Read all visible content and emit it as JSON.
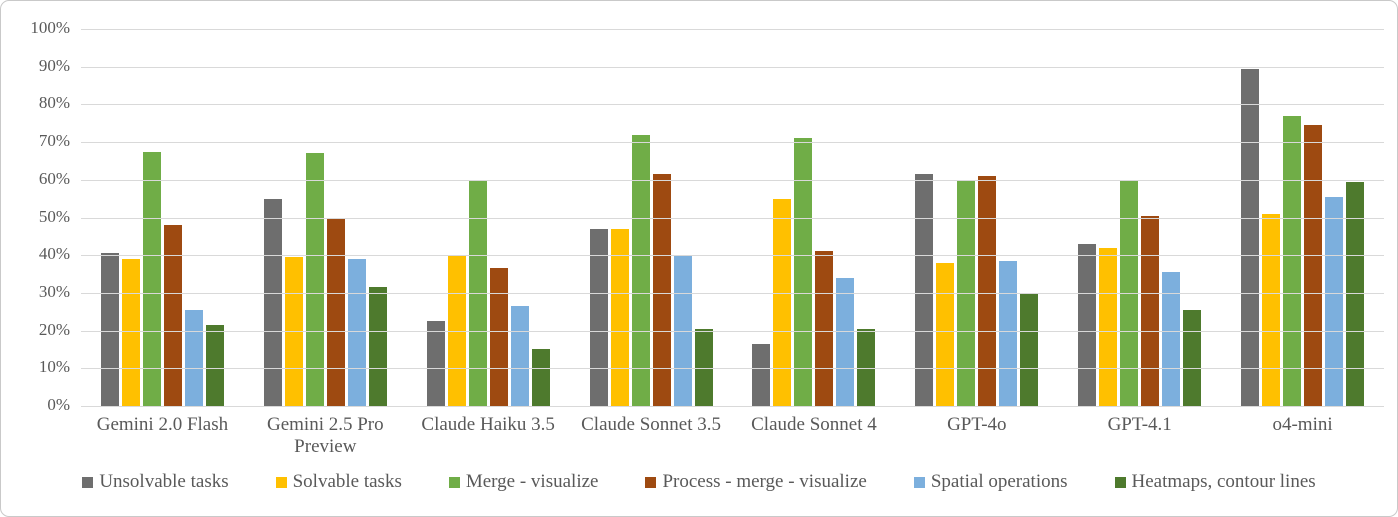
{
  "colors": {
    "background": "#ffffff",
    "border": "#c9c9c9",
    "grid": "#d9d9d9",
    "text": "#595959"
  },
  "chart_data": {
    "type": "bar",
    "title": "",
    "xlabel": "",
    "ylabel": "",
    "ylim": [
      0,
      100
    ],
    "y_tick_step": 10,
    "y_tick_suffix": "%",
    "grid": true,
    "legend_position": "bottom",
    "categories": [
      "Gemini 2.0 Flash",
      "Gemini 2.5 Pro Preview",
      "Claude Haiku 3.5",
      "Claude Sonnet 3.5",
      "Claude Sonnet 4",
      "GPT-4o",
      "GPT-4.1",
      "o4-mini"
    ],
    "series": [
      {
        "name": "Unsolvable tasks",
        "color": "#6e6e6e",
        "values": [
          40.5,
          55,
          22.5,
          47,
          16.5,
          61.5,
          43,
          89.5
        ]
      },
      {
        "name": "Solvable tasks",
        "color": "#ffc000",
        "values": [
          39,
          39.5,
          40,
          47,
          55,
          38,
          42,
          51
        ]
      },
      {
        "name": "Merge - visualize",
        "color": "#70ad47",
        "values": [
          67.5,
          67,
          60,
          72,
          71,
          60,
          60,
          77
        ]
      },
      {
        "name": "Process - merge - visualize",
        "color": "#9e4a11",
        "values": [
          48,
          50,
          36.5,
          61.5,
          41,
          61,
          50.5,
          74.5
        ]
      },
      {
        "name": "Spatial operations",
        "color": "#7cafdd",
        "values": [
          25.5,
          39,
          26.5,
          40,
          34,
          38.5,
          35.5,
          55.5
        ]
      },
      {
        "name": "Heatmaps, contour lines",
        "color": "#4e7a2d",
        "values": [
          21.5,
          31.5,
          15,
          20.5,
          20.5,
          30,
          25.5,
          59.5
        ]
      }
    ]
  }
}
